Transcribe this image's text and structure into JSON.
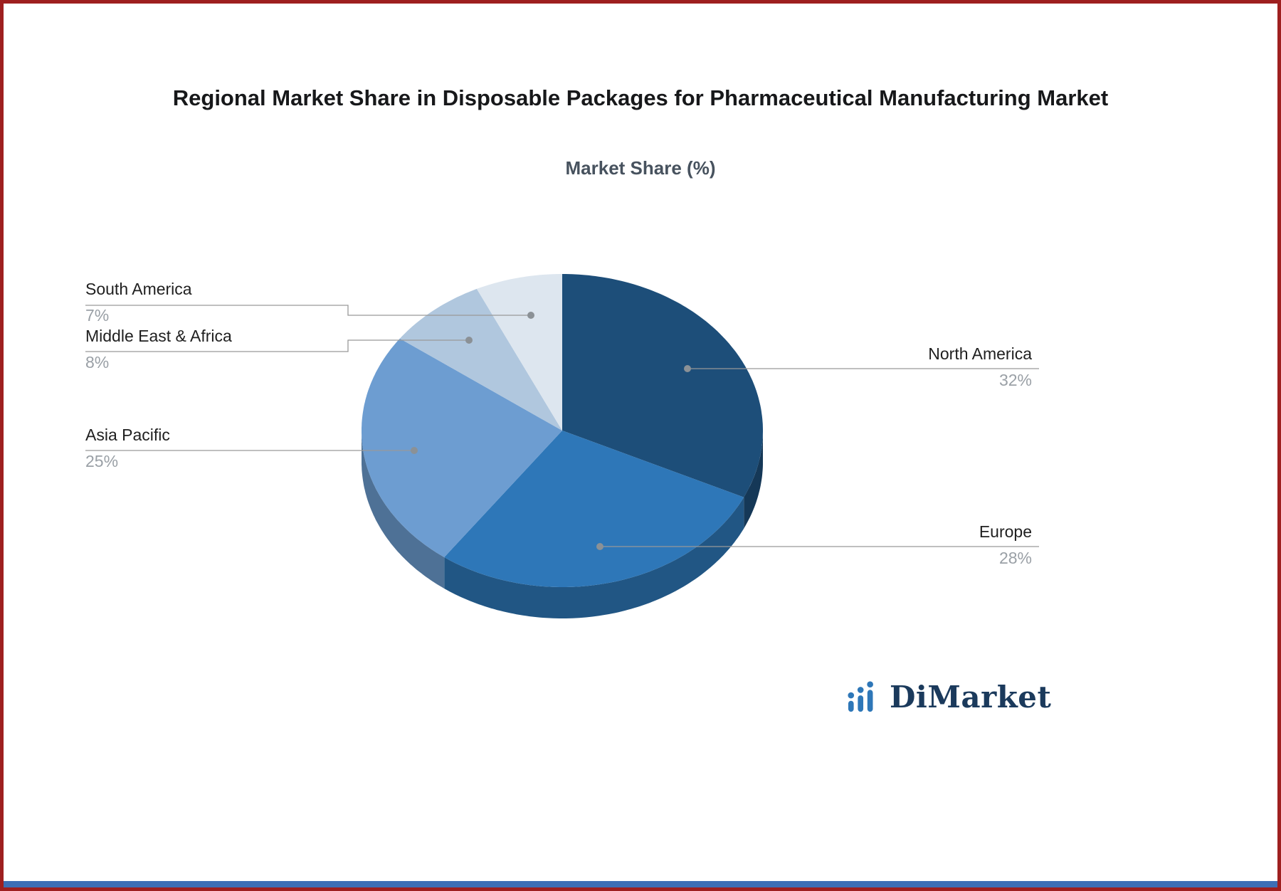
{
  "page": {
    "border_color": "#9e1f1f",
    "footer_bar_color": "#3d6eb5",
    "background": "#ffffff"
  },
  "chart_data": {
    "type": "pie",
    "title": "Regional Market Share in Disposable Packages for Pharmaceutical Manufacturing Market",
    "subtitle": "Market Share (%)",
    "unit": "%",
    "style": "3d",
    "start_angle": "top",
    "direction": "clockwise",
    "legend": "none",
    "connector_color": "#999999",
    "dot_color": "#8b9196",
    "slices": [
      {
        "label": "North America",
        "value": 32,
        "pct_label": "32%",
        "color": "#1d4e79"
      },
      {
        "label": "Europe",
        "value": 28,
        "pct_label": "28%",
        "color": "#2e77b8"
      },
      {
        "label": "Asia Pacific",
        "value": 25,
        "pct_label": "25%",
        "color": "#6d9dd1"
      },
      {
        "label": "Middle East & Africa",
        "value": 8,
        "pct_label": "8%",
        "color": "#b0c7de"
      },
      {
        "label": "South America",
        "value": 7,
        "pct_label": "7%",
        "color": "#dde6ef"
      }
    ]
  },
  "logo": {
    "text": "DiMarket",
    "icon": "bar-chart-icon",
    "text_color": "#1b3a5c",
    "icon_color": "#2e77b8"
  }
}
